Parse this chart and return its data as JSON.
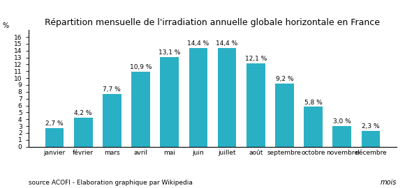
{
  "title": "Répartition mensuelle de l'irradiation annuelle globale horizontale en France",
  "categories": [
    "janvier",
    "février",
    "mars",
    "avril",
    "mai",
    "juin",
    "juillet",
    "août",
    "septembre",
    "octobre",
    "novembre",
    "décembre"
  ],
  "values": [
    2.7,
    4.2,
    7.7,
    10.9,
    13.1,
    14.4,
    14.4,
    12.1,
    9.2,
    5.8,
    3.0,
    2.3
  ],
  "labels": [
    "2,7 %",
    "4,2 %",
    "7,7 %",
    "10,9 %",
    "13,1 %",
    "14,4 %",
    "14,4 %",
    "12,1 %",
    "9,2 %",
    "5,8 %",
    "3,0 %",
    "2,3 %"
  ],
  "bar_color": "#2ab0c5",
  "ylim": [
    0,
    17
  ],
  "yticks": [
    0,
    1,
    2,
    3,
    4,
    5,
    6,
    7,
    8,
    9,
    10,
    11,
    12,
    13,
    14,
    15,
    16
  ],
  "ylabel": "%",
  "xlabel": "mois",
  "footnote": "source ACOFI - Elaboration graphique par Wikipedia",
  "title_fontsize": 9,
  "label_fontsize": 6.5,
  "tick_fontsize": 6.5,
  "footnote_fontsize": 6.5,
  "xlabel_fontsize": 7,
  "ylabel_fontsize": 7,
  "bar_width": 0.65
}
